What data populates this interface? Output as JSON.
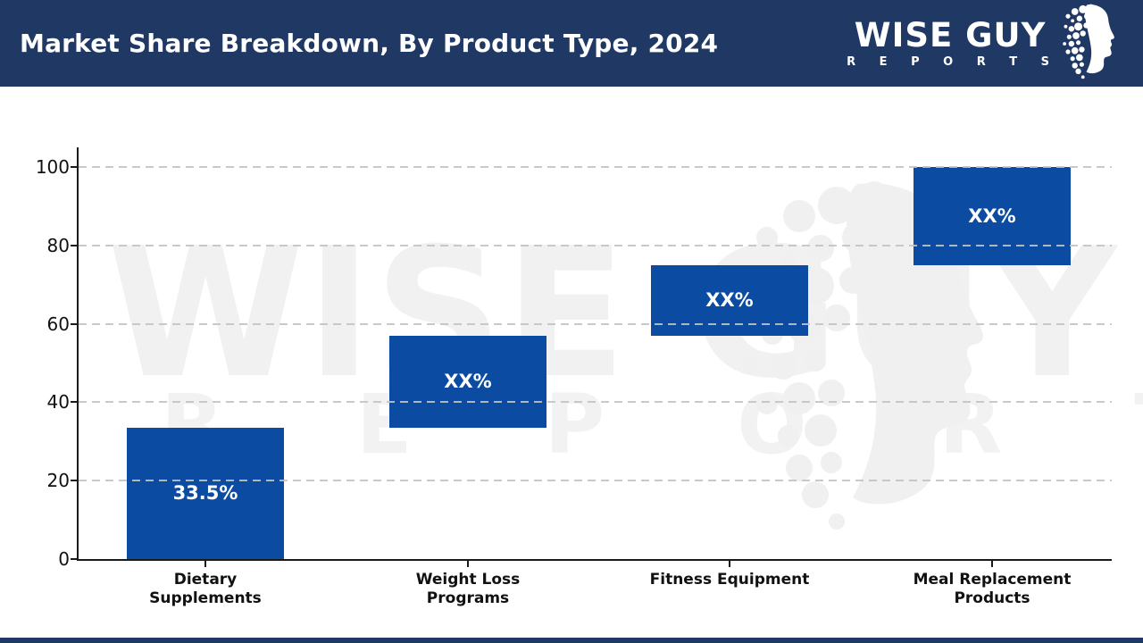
{
  "header": {
    "title": "Market Share Breakdown, By Product Type, 2024",
    "background_color": "#203864",
    "logo": {
      "name": "WISE GUY",
      "subname": "R E P O R T S"
    }
  },
  "watermark": {
    "line1": "WISE GUY",
    "line2": "R E P O R T S"
  },
  "chart_data": {
    "type": "bar",
    "subtype": "waterfall",
    "title": "Market Share Breakdown, By Product Type, 2024",
    "categories": [
      [
        "Dietary",
        "Supplements"
      ],
      [
        "Weight Loss",
        "Programs"
      ],
      [
        "Fitness Equipment"
      ],
      [
        "Meal Replacement",
        "Products"
      ]
    ],
    "segments": [
      {
        "category": "Dietary Supplements",
        "start": 0,
        "end": 33.5,
        "label": "33.5%"
      },
      {
        "category": "Weight Loss Programs",
        "start": 33.5,
        "end": 57,
        "label": "XX%"
      },
      {
        "category": "Fitness Equipment",
        "start": 57,
        "end": 75,
        "label": "XX%"
      },
      {
        "category": "Meal Replacement Products",
        "start": 75,
        "end": 100,
        "label": "XX%"
      }
    ],
    "yticks": [
      0,
      20,
      40,
      60,
      80,
      100
    ],
    "ylim": [
      0,
      105
    ],
    "xlabel": "",
    "ylabel": "",
    "legend": "none",
    "grid": "horizontal-dashed",
    "bar_color": "#0b4ba1",
    "bar_label_color": "#ffffff",
    "gridline_color": "#c3c3c3",
    "axis_color": "#1a1a1a"
  }
}
